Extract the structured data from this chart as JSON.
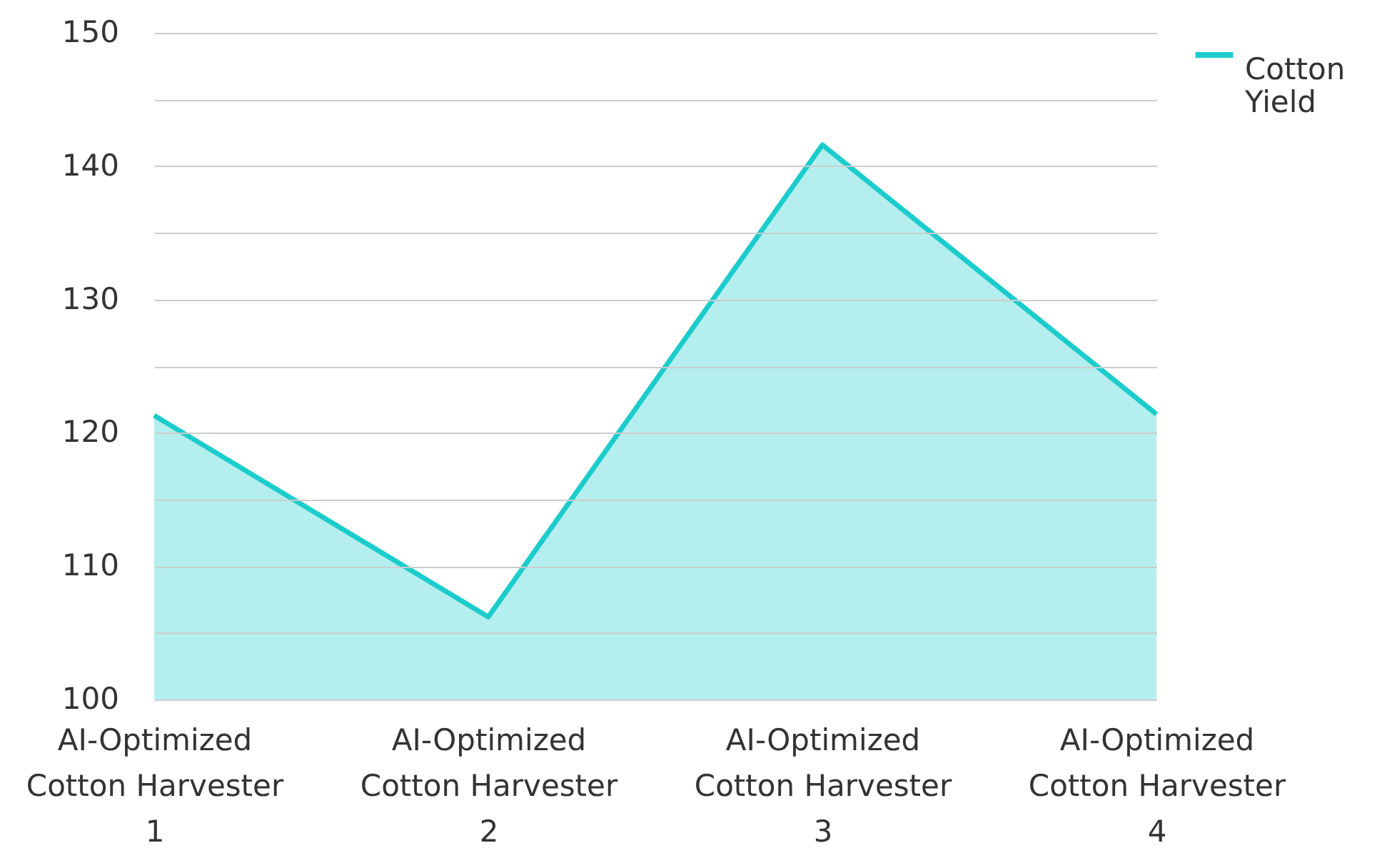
{
  "chart_data": {
    "type": "area",
    "categories": [
      "AI-Optimized Cotton Harvester 1",
      "AI-Optimized Cotton Harvester 2",
      "AI-Optimized Cotton Harvester 3",
      "AI-Optimized Cotton Harvester 4"
    ],
    "series": [
      {
        "name": "Cotton Yield",
        "color": "#1ccccc",
        "values": [
          121.3,
          106.2,
          141.6,
          121.4
        ]
      }
    ],
    "ylim": [
      100,
      150
    ],
    "yticks": [
      100,
      {
        "value": 105,
        "label": null
      },
      110,
      {
        "value": 115,
        "label": null
      },
      120,
      {
        "value": 125,
        "label": null
      },
      130,
      {
        "value": 135,
        "label": null
      },
      140,
      {
        "value": 145,
        "label": null
      },
      150
    ],
    "grid": "y",
    "legend": "top right"
  }
}
